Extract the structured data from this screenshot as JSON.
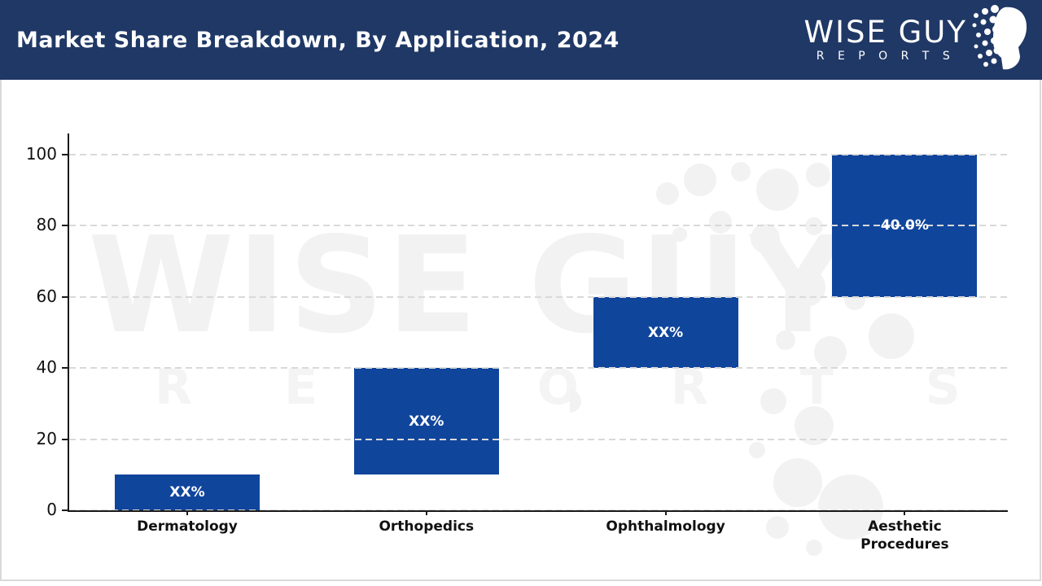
{
  "header": {
    "title": "Market Share Breakdown, By Application, 2024",
    "logo": {
      "line1": "WISE GUY",
      "line2": "R E P O R T S"
    }
  },
  "watermark": {
    "line1": "WISE GUY",
    "line2": "R E P O R T S"
  },
  "chart_data": {
    "type": "bar",
    "subtype": "waterfall",
    "title": "Market Share Breakdown, By Application, 2024",
    "xlabel": "",
    "ylabel": "",
    "categories": [
      "Dermatology",
      "Orthopedics",
      "Ophthalmology",
      "Aesthetic Procedures"
    ],
    "bars": [
      {
        "category": "Dermatology",
        "start": 0,
        "end": 10,
        "value_label": "XX%"
      },
      {
        "category": "Orthopedics",
        "start": 10,
        "end": 40,
        "value_label": "XX%"
      },
      {
        "category": "Ophthalmology",
        "start": 40,
        "end": 60,
        "value_label": "XX%"
      },
      {
        "category": "Aesthetic Procedures",
        "start": 60,
        "end": 100,
        "value_label": "40.0%"
      }
    ],
    "yticks": [
      0,
      20,
      40,
      60,
      80,
      100
    ],
    "ylim": [
      0,
      105
    ],
    "grid": "horizontal-dashed",
    "legend": "none"
  },
  "colors": {
    "header_bg": "#1F3866",
    "bar": "#10459C",
    "grid": "#d9d9d9",
    "axis": "#1a1a1a",
    "watermark": "#f2f2f2",
    "frame_border": "#d9d9d9",
    "bar_label_text": "#ffffff"
  }
}
